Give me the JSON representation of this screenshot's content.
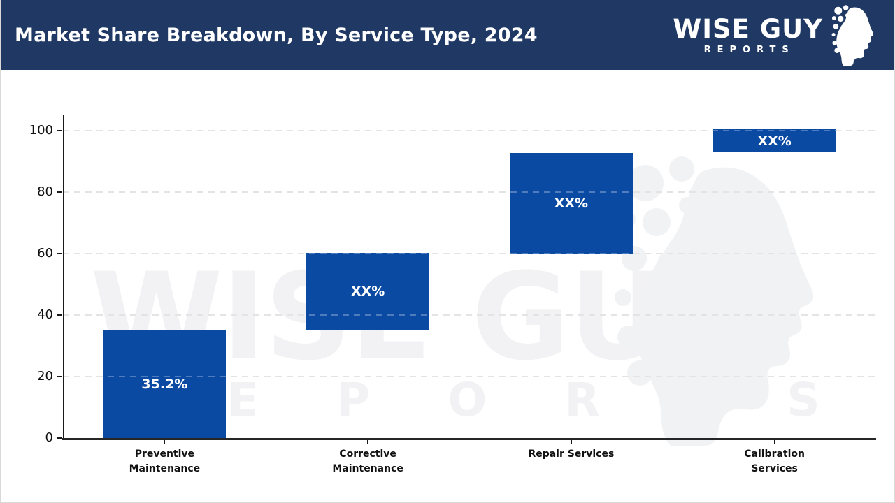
{
  "header": {
    "title": "Market Share Breakdown, By Service Type, 2024",
    "brand_line1": "WISE GUY",
    "brand_line2": "REPORTS"
  },
  "watermark": {
    "line1": "WISE GUY",
    "line2": "R E P O R T S"
  },
  "colors": {
    "header_bg": "#1f3864",
    "bar_fill": "#0b4aa2",
    "bar_label_text": "#ffffff",
    "grid": "#dadada",
    "axis": "#1a1a1a",
    "tick_text": "#111111",
    "watermark": "#f2f2f4"
  },
  "chart_data": {
    "type": "bar",
    "subtype": "waterfall",
    "title": "Market Share Breakdown, By Service Type, 2024",
    "xlabel": "",
    "ylabel": "",
    "yticks": [
      0,
      20,
      40,
      60,
      80,
      100
    ],
    "ylim": [
      0,
      105
    ],
    "grid": "horizontal-dashed",
    "legend": "none",
    "categories": [
      "Preventive Maintenance",
      "Corrective Maintenance",
      "Repair Services",
      "Calibration Services"
    ],
    "category_label_lines": [
      [
        "Preventive",
        "Maintenance"
      ],
      [
        "Corrective",
        "Maintenance"
      ],
      [
        "Repair Services"
      ],
      [
        "Calibration",
        "Services"
      ]
    ],
    "bars": [
      {
        "category": "Preventive Maintenance",
        "start": 0,
        "end": 35.2,
        "label": "35.2%"
      },
      {
        "category": "Corrective Maintenance",
        "start": 35.2,
        "end": 60.3,
        "label": "XX%"
      },
      {
        "category": "Repair Services",
        "start": 60.1,
        "end": 92.8,
        "label": "XX%"
      },
      {
        "category": "Calibration Services",
        "start": 92.9,
        "end": 100.5,
        "label": "XX%"
      }
    ]
  }
}
